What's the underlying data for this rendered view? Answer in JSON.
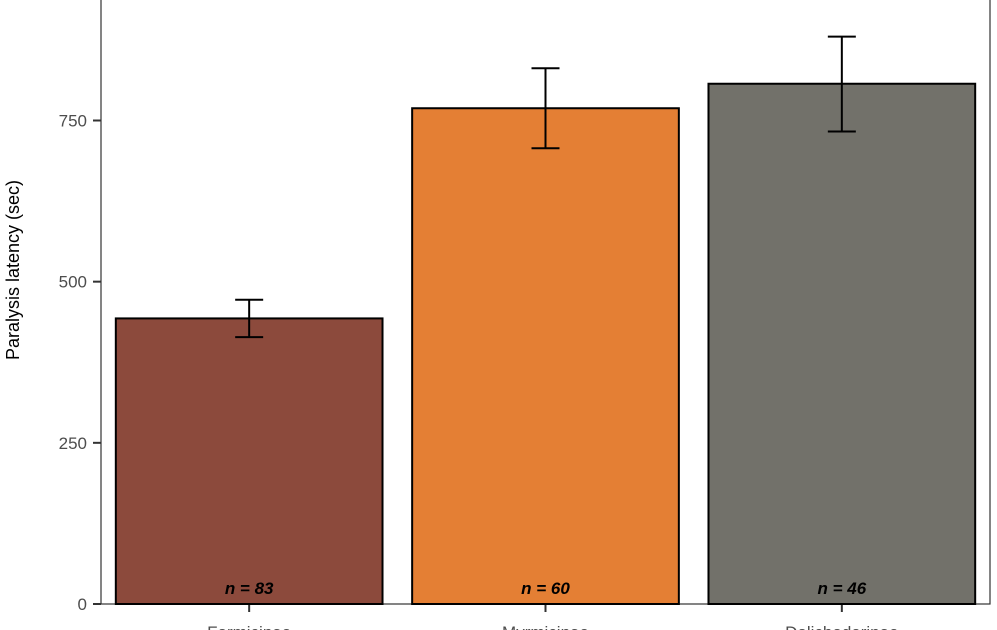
{
  "chart_data": {
    "type": "bar",
    "categories": [
      "Formicinae",
      "Myrmicinae",
      "Dolichoderinae"
    ],
    "values": [
      443,
      769,
      807
    ],
    "error_upper": [
      472,
      831,
      880
    ],
    "error_lower": [
      414,
      707,
      733
    ],
    "sample_labels": [
      "n = 83",
      "n = 60",
      "n = 46"
    ],
    "colors": [
      "#8c4a3c",
      "#e47f34",
      "#72716a"
    ],
    "ylabel": "Paralysis latency (sec)",
    "ylim": [
      0,
      940
    ],
    "yticks": [
      0,
      250,
      500,
      750
    ],
    "grid": false,
    "legend": "none"
  }
}
